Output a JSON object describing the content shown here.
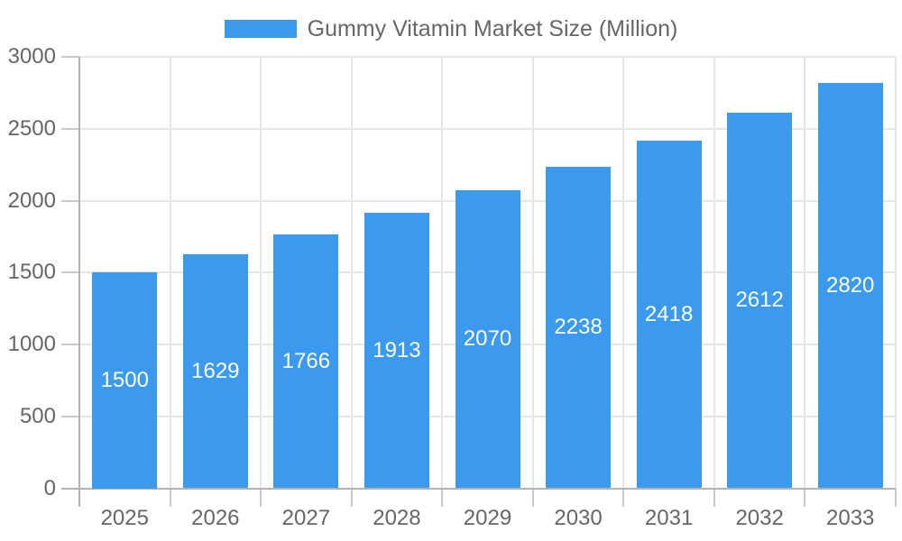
{
  "chart_data": {
    "type": "bar",
    "title": "Gummy Vitamin Market Size (Million)",
    "categories": [
      "2025",
      "2026",
      "2027",
      "2028",
      "2029",
      "2030",
      "2031",
      "2032",
      "2033"
    ],
    "values": [
      1500,
      1629,
      1766,
      1913,
      2070,
      2238,
      2418,
      2612,
      2820
    ],
    "value_labels": [
      "1500",
      "1629",
      "1766",
      "1913",
      "2070",
      "2238",
      "2418",
      "2612",
      "2820"
    ],
    "ylim": [
      0,
      3000
    ],
    "yticks": [
      0,
      500,
      1000,
      1500,
      2000,
      2500,
      3000
    ],
    "ytick_labels": [
      "0",
      "500",
      "1000",
      "1500",
      "2000",
      "2500",
      "3000"
    ],
    "grid": true,
    "legend_position": "top",
    "legend_label": "Gummy Vitamin Market Size (Million)",
    "colors": {
      "bar": "#3b99ee",
      "value_label_text": "#ffffff",
      "tick_text": "#666666",
      "grid_line": "#e6e6e6",
      "axis_line": "#b3b3b3",
      "tick_mark": "#c9c9c9",
      "background": "#ffffff"
    }
  }
}
